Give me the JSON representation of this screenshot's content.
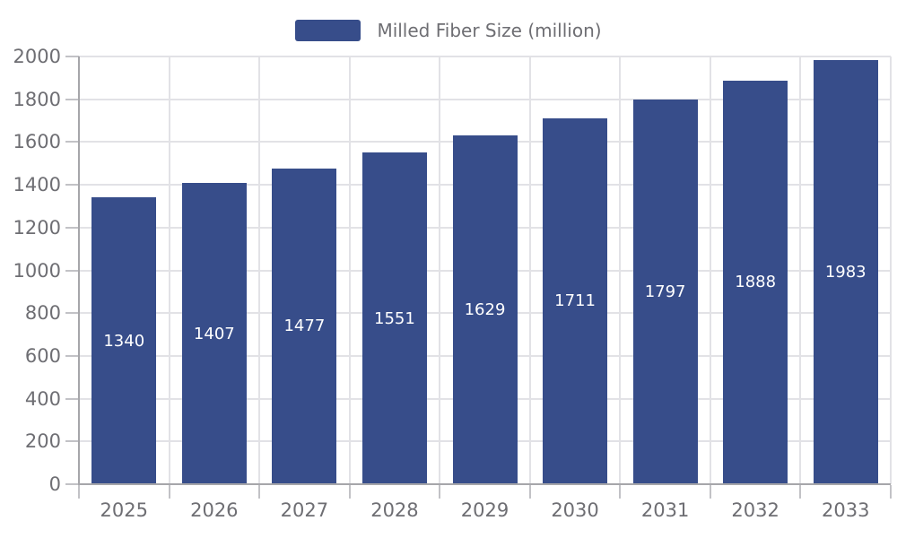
{
  "chart_data": {
    "type": "bar",
    "categories": [
      "2025",
      "2026",
      "2027",
      "2028",
      "2029",
      "2030",
      "2031",
      "2032",
      "2033"
    ],
    "series": [
      {
        "name": "Milled Fiber Size (million)",
        "values": [
          1340,
          1407,
          1477,
          1551,
          1629,
          1711,
          1797,
          1888,
          1983
        ]
      }
    ],
    "title": "",
    "xlabel": "",
    "ylabel": "",
    "ylim": [
      0,
      2000
    ],
    "yticks": [
      0,
      200,
      400,
      600,
      800,
      1000,
      1200,
      1400,
      1600,
      1800,
      2000
    ],
    "grid": true,
    "show_bar_labels": true,
    "legend": {
      "position": "top-center",
      "entries": [
        "Milled Fiber Size (million)"
      ]
    },
    "colors": {
      "bar": "#374D8A",
      "bar_label": "#FFFFFF",
      "grid": "#E2E2E6",
      "axis": "#A6A6AA",
      "tick": "#C2C2C6",
      "text": "#6E6E73",
      "background": "#FFFFFF"
    }
  }
}
